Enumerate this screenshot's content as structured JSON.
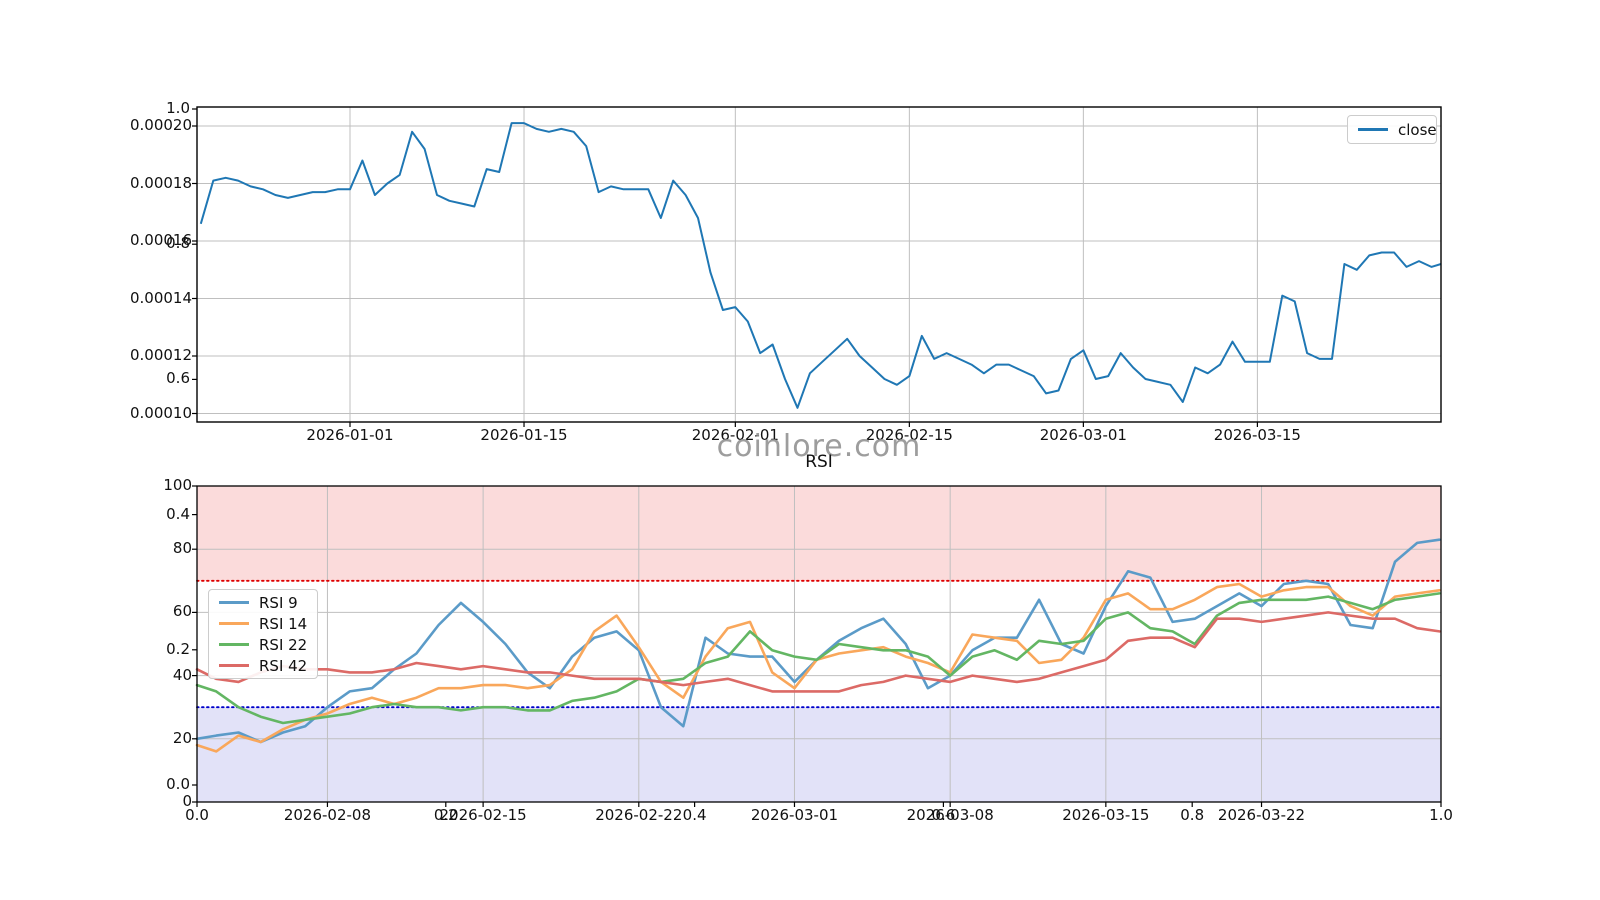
{
  "watermark_text": "coinlore.com",
  "price_chart": {
    "legend_label": "close",
    "y_tick_labels": [
      "0.00020",
      "0.00018",
      "0.00016",
      "0.00014",
      "0.00012",
      "0.00010"
    ],
    "x_tick_labels": [
      "2026-01-01",
      "2026-01-15",
      "2026-02-01",
      "2026-02-15",
      "2026-03-01",
      "2026-03-15"
    ]
  },
  "rsi_chart": {
    "title": "RSI",
    "legend_labels": [
      "RSI 9",
      "RSI 14",
      "RSI 22",
      "RSI 42"
    ],
    "y_tick_labels": [
      "100",
      "80",
      "60",
      "40",
      "20",
      "0"
    ],
    "x_tick_labels": [
      "2026-02-08",
      "2026-02-15",
      "2026-02-22",
      "2026-03-01",
      "2026-03-08",
      "2026-03-15",
      "2026-03-22"
    ],
    "overbought_level": 70,
    "oversold_level": 30
  },
  "hidden_axis": {
    "y_tick_labels": [
      "1.0",
      "0.8",
      "0.6",
      "0.4",
      "0.2",
      "0.0"
    ],
    "x_tick_labels": [
      "0.0",
      "0.2",
      "0.4",
      "0.6",
      "0.8",
      "1.0"
    ]
  },
  "colors": {
    "close": "#1f77b4",
    "rsi9": "#5b9bc8",
    "rsi14": "#f9a75b",
    "rsi22": "#63b663",
    "rsi42": "#dc6a66",
    "grid": "#bfbfbf",
    "spine": "#000000",
    "overbought_fill": "#fbdbdb",
    "oversold_fill": "#e2e2f8",
    "overbought_line": "#dd0000",
    "oversold_line": "#0000cc",
    "watermark": "#8c8c8c",
    "legend_border": "#cccccc",
    "text": "#111111"
  },
  "chart_data": [
    {
      "type": "line",
      "title": "",
      "xlabel": "",
      "ylabel": "",
      "grid": true,
      "legend_position": "upper right",
      "ylim": [
        9.68e-05,
        0.0002065
      ],
      "x": [
        "2025-12-20",
        "2025-12-21",
        "2025-12-22",
        "2025-12-23",
        "2025-12-24",
        "2025-12-25",
        "2025-12-26",
        "2025-12-27",
        "2025-12-28",
        "2025-12-29",
        "2025-12-30",
        "2025-12-31",
        "2026-01-01",
        "2026-01-02",
        "2026-01-03",
        "2026-01-04",
        "2026-01-05",
        "2026-01-06",
        "2026-01-07",
        "2026-01-08",
        "2026-01-09",
        "2026-01-10",
        "2026-01-11",
        "2026-01-12",
        "2026-01-13",
        "2026-01-14",
        "2026-01-15",
        "2026-01-16",
        "2026-01-17",
        "2026-01-18",
        "2026-01-19",
        "2026-01-20",
        "2026-01-21",
        "2026-01-22",
        "2026-01-23",
        "2026-01-24",
        "2026-01-25",
        "2026-01-26",
        "2026-01-27",
        "2026-01-28",
        "2026-01-29",
        "2026-01-30",
        "2026-01-31",
        "2026-02-01",
        "2026-02-02",
        "2026-02-03",
        "2026-02-04",
        "2026-02-05",
        "2026-02-06",
        "2026-02-07",
        "2026-02-08",
        "2026-02-09",
        "2026-02-10",
        "2026-02-11",
        "2026-02-12",
        "2026-02-13",
        "2026-02-14",
        "2026-02-15",
        "2026-02-16",
        "2026-02-17",
        "2026-02-18",
        "2026-02-19",
        "2026-02-20",
        "2026-02-21",
        "2026-02-22",
        "2026-02-23",
        "2026-02-24",
        "2026-02-25",
        "2026-02-26",
        "2026-02-27",
        "2026-02-28",
        "2026-03-01",
        "2026-03-02",
        "2026-03-03",
        "2026-03-04",
        "2026-03-05",
        "2026-03-06",
        "2026-03-07",
        "2026-03-08",
        "2026-03-09",
        "2026-03-10",
        "2026-03-11",
        "2026-03-12",
        "2026-03-13",
        "2026-03-14",
        "2026-03-15",
        "2026-03-16",
        "2026-03-17",
        "2026-03-18",
        "2026-03-19",
        "2026-03-20",
        "2026-03-21",
        "2026-03-22",
        "2026-03-23",
        "2026-03-24",
        "2026-03-25",
        "2026-03-26",
        "2026-03-27",
        "2026-03-28",
        "2026-03-29",
        "2026-03-30"
      ],
      "series": [
        {
          "name": "close",
          "values": [
            0.000166,
            0.000181,
            0.000182,
            0.000181,
            0.000179,
            0.000178,
            0.000176,
            0.000175,
            0.000176,
            0.000177,
            0.000177,
            0.000178,
            0.000178,
            0.000188,
            0.000176,
            0.00018,
            0.000183,
            0.000198,
            0.000192,
            0.000176,
            0.000174,
            0.000173,
            0.000172,
            0.000185,
            0.000184,
            0.000201,
            0.000201,
            0.000199,
            0.000198,
            0.000199,
            0.000198,
            0.000193,
            0.000177,
            0.000179,
            0.000178,
            0.000178,
            0.000178,
            0.000168,
            0.000181,
            0.000176,
            0.000168,
            0.000149,
            0.000136,
            0.000137,
            0.000132,
            0.000121,
            0.000124,
            0.000112,
            0.000102,
            0.000114,
            0.000118,
            0.000122,
            0.000126,
            0.00012,
            0.000116,
            0.000112,
            0.00011,
            0.000113,
            0.000127,
            0.000119,
            0.000121,
            0.000119,
            0.000117,
            0.000114,
            0.000117,
            0.000117,
            0.000115,
            0.000113,
            0.000107,
            0.000108,
            0.000119,
            0.000122,
            0.000112,
            0.000113,
            0.000121,
            0.000116,
            0.000112,
            0.000111,
            0.00011,
            0.000104,
            0.000116,
            0.000114,
            0.000117,
            0.000125,
            0.000118,
            0.000118,
            0.000118,
            0.000141,
            0.000139,
            0.000121,
            0.000119,
            0.000119,
            0.000152,
            0.00015,
            0.000155,
            0.000156,
            0.000156,
            0.000151,
            0.000153,
            0.000151,
            0.000152
          ]
        }
      ]
    },
    {
      "type": "line",
      "title": "RSI",
      "xlabel": "",
      "ylabel": "",
      "grid": true,
      "legend_position": "center left",
      "ylim": [
        0,
        100
      ],
      "thresholds": {
        "overbought": 70,
        "oversold": 30
      },
      "shaded_bands": [
        {
          "from": 70,
          "to": 100,
          "color": "#fbdbdb"
        },
        {
          "from": 0,
          "to": 30,
          "color": "#e2e2f8"
        }
      ],
      "x": [
        "2026-02-02",
        "2026-02-03",
        "2026-02-04",
        "2026-02-05",
        "2026-02-06",
        "2026-02-07",
        "2026-02-08",
        "2026-02-09",
        "2026-02-10",
        "2026-02-11",
        "2026-02-12",
        "2026-02-13",
        "2026-02-14",
        "2026-02-15",
        "2026-02-16",
        "2026-02-17",
        "2026-02-18",
        "2026-02-19",
        "2026-02-20",
        "2026-02-21",
        "2026-02-22",
        "2026-02-23",
        "2026-02-24",
        "2026-02-25",
        "2026-02-26",
        "2026-02-27",
        "2026-02-28",
        "2026-03-01",
        "2026-03-02",
        "2026-03-03",
        "2026-03-04",
        "2026-03-05",
        "2026-03-06",
        "2026-03-07",
        "2026-03-08",
        "2026-03-09",
        "2026-03-10",
        "2026-03-11",
        "2026-03-12",
        "2026-03-13",
        "2026-03-14",
        "2026-03-15",
        "2026-03-16",
        "2026-03-17",
        "2026-03-18",
        "2026-03-19",
        "2026-03-20",
        "2026-03-21",
        "2026-03-22",
        "2026-03-23",
        "2026-03-24",
        "2026-03-25",
        "2026-03-26",
        "2026-03-27",
        "2026-03-28",
        "2026-03-29",
        "2026-03-30"
      ],
      "series": [
        {
          "name": "RSI 9",
          "values": [
            20,
            21,
            22,
            19,
            22,
            24,
            30,
            35,
            36,
            42,
            47,
            56,
            63,
            57,
            50,
            41,
            36,
            46,
            52,
            54,
            48,
            30,
            24,
            52,
            47,
            46,
            46,
            38,
            45,
            51,
            55,
            58,
            50,
            36,
            40,
            48,
            52,
            52,
            64,
            50,
            47,
            62,
            73,
            71,
            57,
            58,
            62,
            66,
            62,
            69,
            70,
            69,
            56,
            55,
            76,
            82,
            83
          ]
        },
        {
          "name": "RSI 14",
          "values": [
            18,
            16,
            21,
            19,
            23,
            26,
            28,
            31,
            33,
            31,
            33,
            36,
            36,
            37,
            37,
            36,
            37,
            42,
            54,
            59,
            49,
            38,
            33,
            46,
            55,
            57,
            41,
            36,
            45,
            47,
            48,
            49,
            46,
            44,
            41,
            53,
            52,
            51,
            44,
            45,
            52,
            64,
            66,
            61,
            61,
            64,
            68,
            69,
            65,
            67,
            68,
            68,
            62,
            59,
            65,
            66,
            67
          ]
        },
        {
          "name": "RSI 22",
          "values": [
            37,
            35,
            30,
            27,
            25,
            26,
            27,
            28,
            30,
            31,
            30,
            30,
            29,
            30,
            30,
            29,
            29,
            32,
            33,
            35,
            39,
            38,
            39,
            44,
            46,
            54,
            48,
            46,
            45,
            50,
            49,
            48,
            48,
            46,
            40,
            46,
            48,
            45,
            51,
            50,
            51,
            58,
            60,
            55,
            54,
            50,
            59,
            63,
            64,
            64,
            64,
            65,
            63,
            61,
            64,
            65,
            66
          ]
        },
        {
          "name": "RSI 42",
          "values": [
            42,
            39,
            38,
            41,
            43,
            42,
            42,
            41,
            41,
            42,
            44,
            43,
            42,
            43,
            42,
            41,
            41,
            40,
            39,
            39,
            39,
            38,
            37,
            38,
            39,
            37,
            35,
            35,
            35,
            35,
            37,
            38,
            40,
            39,
            38,
            40,
            39,
            38,
            39,
            41,
            43,
            45,
            51,
            52,
            52,
            49,
            58,
            58,
            57,
            58,
            59,
            60,
            59,
            58,
            58,
            55,
            54
          ]
        }
      ]
    }
  ]
}
